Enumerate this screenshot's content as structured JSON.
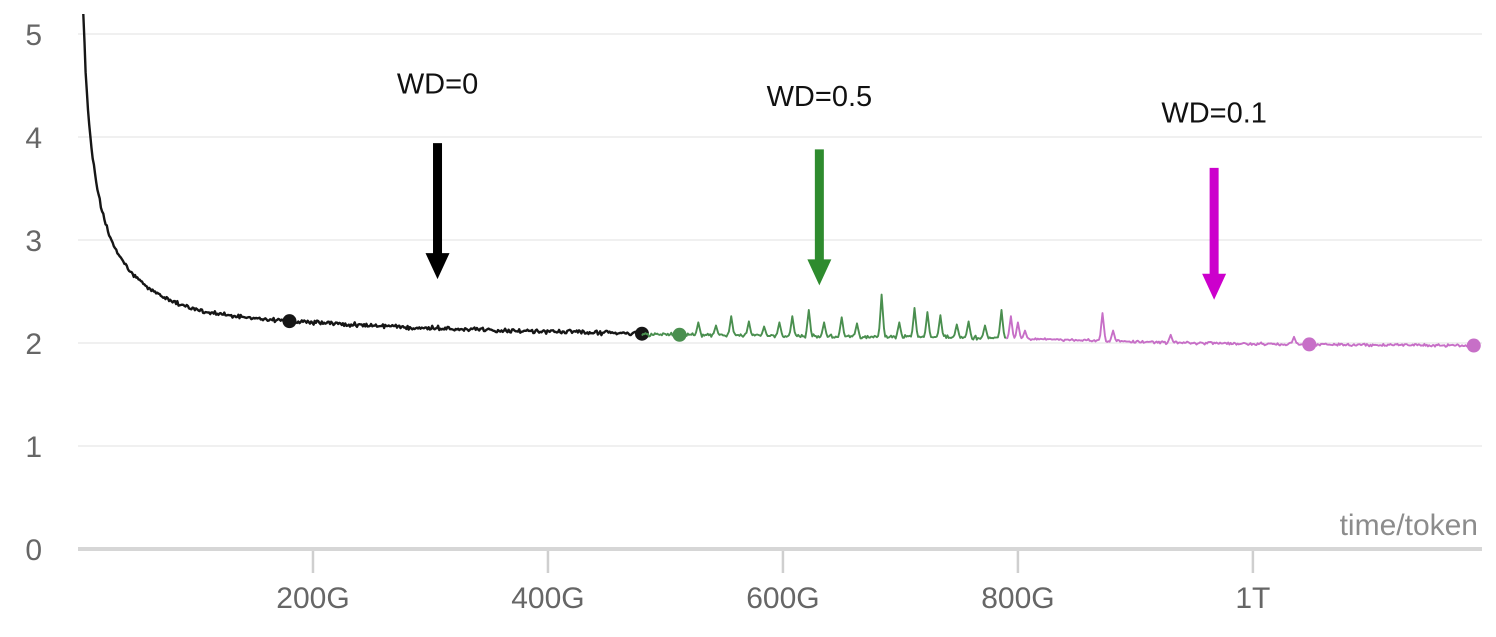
{
  "chart_data": {
    "type": "line",
    "title": "",
    "xlabel": "time/token",
    "ylabel": "",
    "xlim": [
      0,
      1195
    ],
    "ylim": [
      0,
      5
    ],
    "grid": true,
    "grid_color": "#ebebeb",
    "axis_color": "#d6d6d6",
    "tick_color": "#cfcfcf",
    "tick_label_color": "#666666",
    "xlabel_color": "#8c8c8c",
    "y_ticks": [
      {
        "v": 0,
        "label": "0"
      },
      {
        "v": 1,
        "label": "1"
      },
      {
        "v": 2,
        "label": "2"
      },
      {
        "v": 3,
        "label": "3"
      },
      {
        "v": 4,
        "label": "4"
      },
      {
        "v": 5,
        "label": "5"
      }
    ],
    "x_ticks": [
      {
        "v": 200,
        "label": "200G"
      },
      {
        "v": 400,
        "label": "400G"
      },
      {
        "v": 600,
        "label": "600G"
      },
      {
        "v": 800,
        "label": "800G"
      },
      {
        "v": 1000,
        "label": "1T"
      }
    ],
    "series": [
      {
        "id": "wd0",
        "name": "WD=0",
        "color": "#161616",
        "stroke_width": 2.4,
        "noise": 0.025,
        "points": [
          [
            4.5,
            5.2
          ],
          [
            6,
            4.75
          ],
          [
            8,
            4.35
          ],
          [
            10,
            4.05
          ],
          [
            13,
            3.75
          ],
          [
            16,
            3.52
          ],
          [
            20,
            3.3
          ],
          [
            25,
            3.1
          ],
          [
            31,
            2.93
          ],
          [
            38,
            2.79
          ],
          [
            47,
            2.66
          ],
          [
            58,
            2.55
          ],
          [
            72,
            2.45
          ],
          [
            88,
            2.37
          ],
          [
            105,
            2.31
          ],
          [
            125,
            2.27
          ],
          [
            150,
            2.24
          ],
          [
            175,
            2.215
          ],
          [
            200,
            2.2
          ],
          [
            240,
            2.175
          ],
          [
            280,
            2.155
          ],
          [
            320,
            2.14
          ],
          [
            360,
            2.125
          ],
          [
            400,
            2.112
          ],
          [
            440,
            2.1
          ],
          [
            480,
            2.09
          ]
        ],
        "spikes": [],
        "markers": [
          180,
          480
        ]
      },
      {
        "id": "wd05",
        "name": "WD=0.5",
        "color": "#4a8f4f",
        "stroke_width": 1.9,
        "noise": 0.022,
        "points": [
          [
            480,
            2.085
          ],
          [
            540,
            2.075
          ],
          [
            600,
            2.068
          ],
          [
            660,
            2.062
          ],
          [
            720,
            2.058
          ],
          [
            790,
            2.05
          ]
        ],
        "spikes": [
          [
            528,
            2.2
          ],
          [
            543,
            2.17
          ],
          [
            556,
            2.26
          ],
          [
            571,
            2.21
          ],
          [
            584,
            2.16
          ],
          [
            597,
            2.2
          ],
          [
            608,
            2.26
          ],
          [
            622,
            2.32
          ],
          [
            635,
            2.2
          ],
          [
            650,
            2.25
          ],
          [
            663,
            2.19
          ],
          [
            684,
            2.47
          ],
          [
            699,
            2.2
          ],
          [
            712,
            2.34
          ],
          [
            723,
            2.3
          ],
          [
            734,
            2.27
          ],
          [
            748,
            2.18
          ],
          [
            758,
            2.21
          ],
          [
            772,
            2.17
          ],
          [
            786,
            2.32
          ]
        ],
        "markers": [
          512
        ]
      },
      {
        "id": "wd01",
        "name": "WD=0.1",
        "color": "#c76fc7",
        "stroke_width": 1.9,
        "noise": 0.016,
        "points": [
          [
            790,
            2.045
          ],
          [
            840,
            2.03
          ],
          [
            890,
            2.015
          ],
          [
            940,
            2.0
          ],
          [
            1000,
            1.992
          ],
          [
            1060,
            1.985
          ],
          [
            1120,
            1.98
          ],
          [
            1192,
            1.975
          ]
        ],
        "spikes": [
          [
            794,
            2.26
          ],
          [
            800,
            2.2
          ],
          [
            806,
            2.12
          ],
          [
            872,
            2.29
          ],
          [
            881,
            2.12
          ],
          [
            930,
            2.08
          ],
          [
            1035,
            2.06
          ]
        ],
        "markers": [
          1048,
          1188
        ]
      }
    ],
    "annotations": [
      {
        "id": "wd0",
        "label": "WD=0",
        "x": 306,
        "label_y": 4.42,
        "arrow_top": 3.94,
        "arrow_bottom": 2.62,
        "arrow_color": "#000000",
        "label_color": "#111111"
      },
      {
        "id": "wd05",
        "label": "WD=0.5",
        "x": 631,
        "label_y": 4.3,
        "arrow_top": 3.88,
        "arrow_bottom": 2.56,
        "arrow_color": "#2e8b2e",
        "label_color": "#111111"
      },
      {
        "id": "wd01",
        "label": "WD=0.1",
        "x": 967,
        "label_y": 4.14,
        "arrow_top": 3.7,
        "arrow_bottom": 2.42,
        "arrow_color": "#cc00cc",
        "label_color": "#111111"
      }
    ]
  }
}
